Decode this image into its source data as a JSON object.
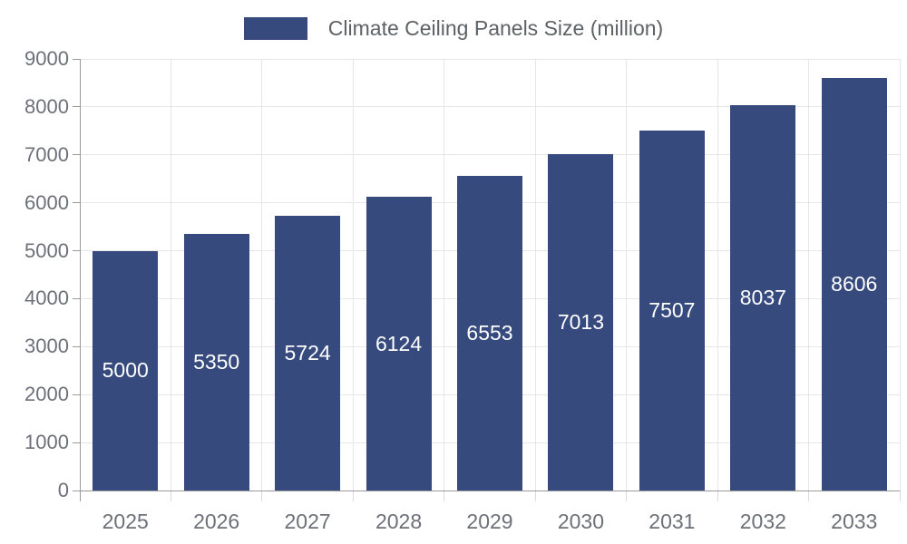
{
  "chart_data": {
    "type": "bar",
    "title": "Climate Ceiling Panels Size (million)",
    "legend_label": "Climate Ceiling Panels Size (million)",
    "legend_position": "top-center",
    "categories": [
      "2025",
      "2026",
      "2027",
      "2028",
      "2029",
      "2030",
      "2031",
      "2032",
      "2033"
    ],
    "values": [
      5000,
      5350,
      5724,
      6124,
      6553,
      7013,
      7507,
      8037,
      8606
    ],
    "bar_value_labels": [
      "5000",
      "5350",
      "5724",
      "6124",
      "6553",
      "7013",
      "7507",
      "8037",
      "8606"
    ],
    "xlabel": "",
    "ylabel": "",
    "ylim": [
      0,
      9000
    ],
    "ytick_step": 1000,
    "ytick_labels": [
      "0",
      "1000",
      "2000",
      "3000",
      "4000",
      "5000",
      "6000",
      "7000",
      "8000",
      "9000"
    ],
    "grid": true,
    "colors": {
      "bar": "#364a7e",
      "bar_label": "#ffffff",
      "axis_line": "#999999",
      "grid_line": "#e6e6e6",
      "x_tick_mark": "#d9d9d9",
      "tick_text": "#6e7079",
      "legend_text": "#5e6266"
    }
  }
}
